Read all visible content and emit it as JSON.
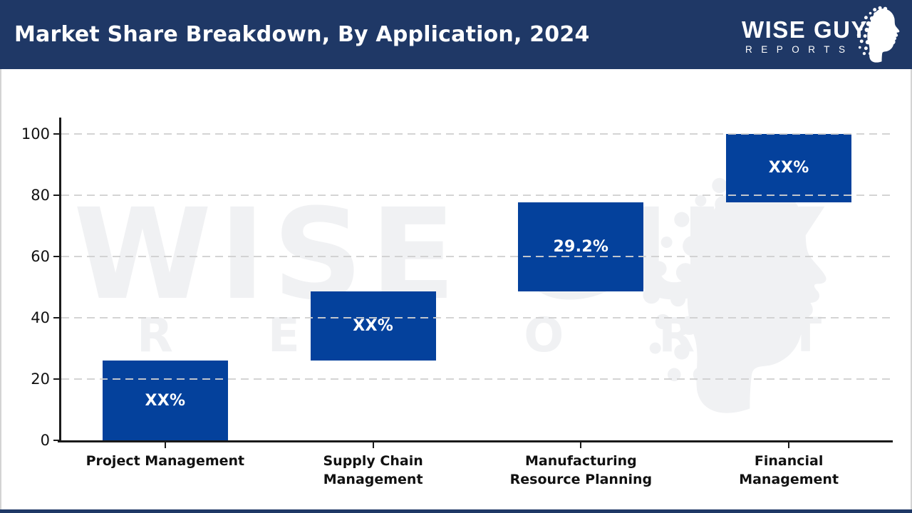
{
  "header": {
    "title": "Market Share Breakdown, By Application, 2024",
    "bg_color": "#1f3866",
    "logo": {
      "line1": "WISE GUY",
      "line2": "REPORTS"
    }
  },
  "watermark": {
    "line1": "WISE GUY",
    "line2": "R E P O R T S"
  },
  "chart_data": {
    "type": "bar",
    "subtype": "waterfall",
    "title": "Market Share Breakdown, By Application, 2024",
    "categories": [
      [
        "Project Management"
      ],
      [
        "Supply Chain",
        "Management"
      ],
      [
        "Manufacturing",
        "Resource Planning"
      ],
      [
        "Financial",
        "Management"
      ]
    ],
    "segments": [
      {
        "category": "Project Management",
        "start": 0,
        "end": 26,
        "label": "XX%"
      },
      {
        "category": "Supply Chain Management",
        "start": 26,
        "end": 48.5,
        "label": "XX%"
      },
      {
        "category": "Manufacturing Resource Planning",
        "start": 48.5,
        "end": 77.7,
        "label": "29.2%"
      },
      {
        "category": "Financial Management",
        "start": 77.7,
        "end": 100,
        "label": "XX%"
      }
    ],
    "yticks": [
      0,
      20,
      40,
      60,
      80,
      100
    ],
    "ylim": [
      0,
      105.3
    ],
    "grid": "dashed-horizontal",
    "legend": "none",
    "bar_color": "#04419c",
    "value_label_color": "#ffffff",
    "axis_color": "#1a1a1a",
    "grid_color": "#d0d0d0"
  }
}
